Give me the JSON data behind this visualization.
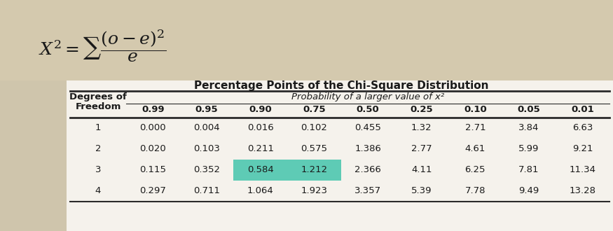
{
  "title": "Percentage Points of the Chi-Square Distribution",
  "col_header_top": "Probability of a larger value of x²",
  "col_header_left_1": "Degrees of",
  "col_header_left_2": "Freedom",
  "col_probs": [
    "0.99",
    "0.95",
    "0.90",
    "0.75",
    "0.50",
    "0.25",
    "0.10",
    "0.05",
    "0.01"
  ],
  "rows": [
    {
      "df": "1",
      "values": [
        "0.000",
        "0.004",
        "0.016",
        "0.102",
        "0.455",
        "1.32",
        "2.71",
        "3.84",
        "6.63"
      ]
    },
    {
      "df": "2",
      "values": [
        "0.020",
        "0.103",
        "0.211",
        "0.575",
        "1.386",
        "2.77",
        "4.61",
        "5.99",
        "9.21"
      ]
    },
    {
      "df": "3",
      "values": [
        "0.115",
        "0.352",
        "0.584",
        "1.212",
        "2.366",
        "4.11",
        "6.25",
        "7.81",
        "11.34"
      ]
    },
    {
      "df": "4",
      "values": [
        "0.297",
        "0.711",
        "1.064",
        "1.923",
        "3.357",
        "5.39",
        "7.78",
        "9.49",
        "13.28"
      ]
    }
  ],
  "highlight_cells": [
    {
      "row": 2,
      "col": 2,
      "color": "#5ecbb5"
    },
    {
      "row": 2,
      "col": 3,
      "color": "#5ecbb5"
    }
  ],
  "bg_color": "#cfc5ac",
  "table_bg": "#f5f2ec",
  "line_color": "#2a2a2a",
  "text_color": "#1a1a1a",
  "font_size_data": 9.5,
  "font_size_title": 11,
  "font_size_header": 9.5,
  "font_size_formula": 18
}
